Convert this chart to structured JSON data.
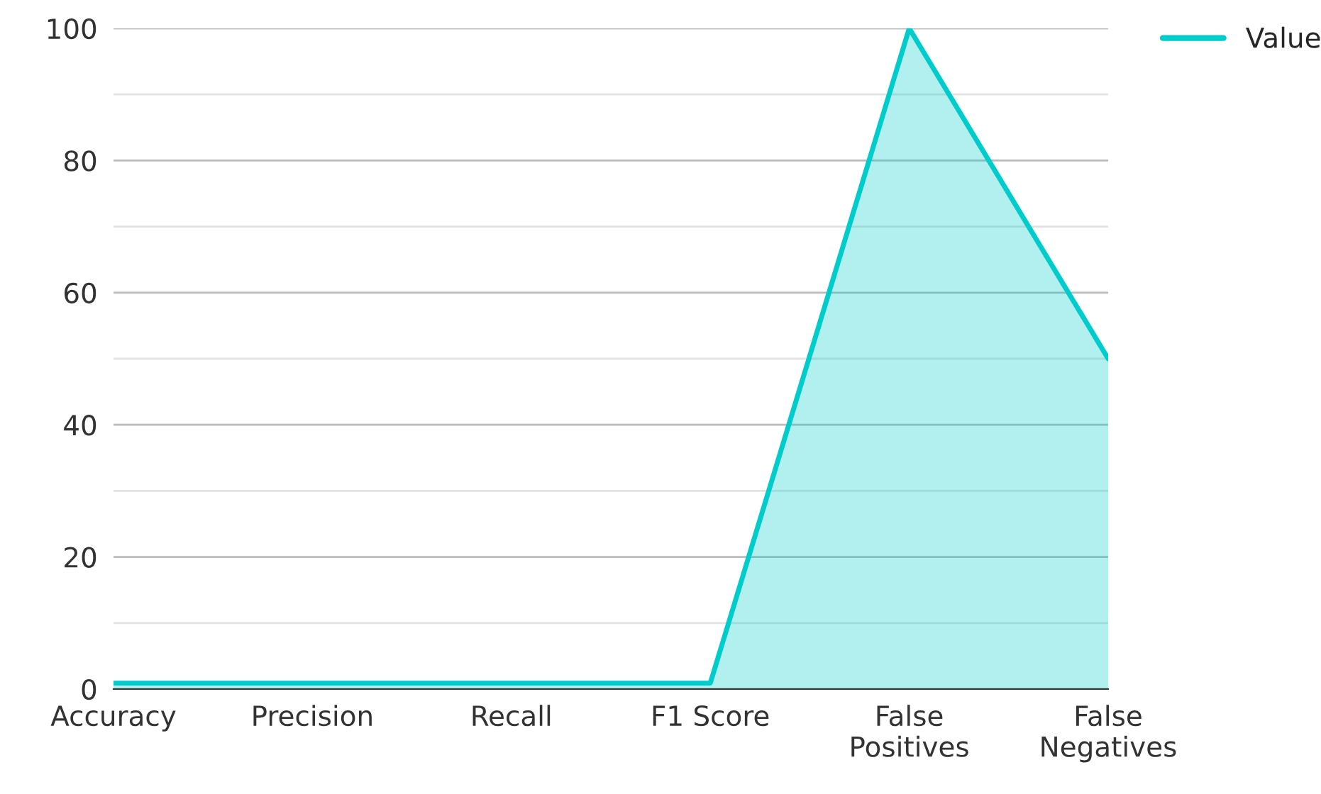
{
  "chart_data": {
    "type": "area",
    "categories": [
      "Accuracy",
      "Precision",
      "Recall",
      "F1 Score",
      "False Positives",
      "False Negatives"
    ],
    "series": [
      {
        "name": "Value",
        "color": "#00cccc",
        "values": [
          0.9,
          0.9,
          0.9,
          0.9,
          100,
          50
        ]
      }
    ],
    "ylim": [
      0,
      100
    ],
    "yticks": [
      0,
      {
        "value": 10,
        "label": null
      },
      20,
      {
        "value": 30,
        "label": null
      },
      40,
      {
        "value": 50,
        "label": null
      },
      60,
      {
        "value": 70,
        "label": null
      },
      80,
      {
        "value": 90,
        "label": null
      },
      100
    ],
    "grid": "y",
    "legend": "top right"
  }
}
